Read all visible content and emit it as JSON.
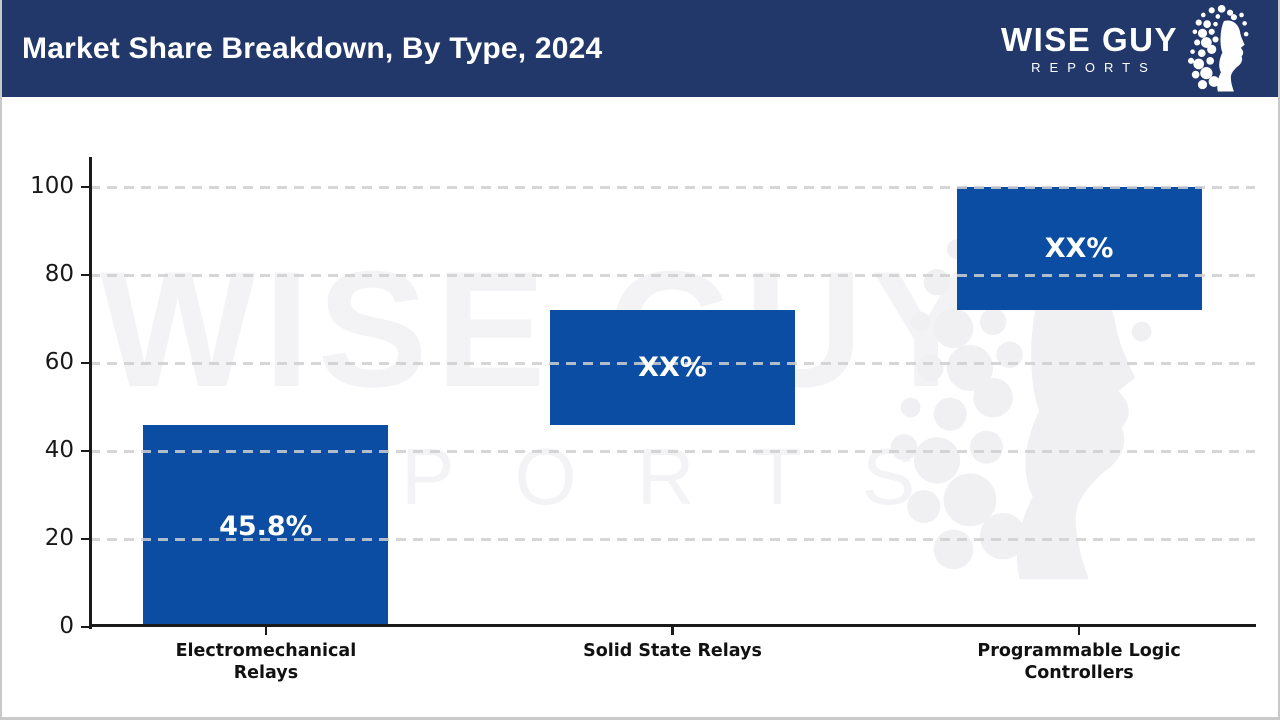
{
  "header": {
    "title": "Market Share Breakdown, By Type, 2024",
    "logo": {
      "name": "WISE GUY",
      "sub": "REPORTS"
    }
  },
  "watermark": {
    "name": "WISE GUY",
    "sub": "REPORTS"
  },
  "colors": {
    "header_bg": "#22386b",
    "bar": "#0b4da2",
    "bar_label": "#ffffff",
    "axis": "#1a1a1a",
    "gridline": "#cfcfcf",
    "tick_text": "#191919",
    "category_text": "#111111",
    "watermark_text": "#f3f3f5",
    "page_border": "#c9c9c9"
  },
  "chart_data": {
    "type": "bar",
    "variant": "waterfall",
    "title": "Market Share Breakdown, By Type, 2024",
    "categories": [
      "Electromechanical Relays",
      "Solid State Relays",
      "Programmable Logic Controllers"
    ],
    "categories_lines": [
      [
        "Electromechanical",
        "Relays"
      ],
      [
        "Solid State Relays"
      ],
      [
        "Programmable Logic",
        "Controllers"
      ]
    ],
    "bars": [
      {
        "category": "Electromechanical Relays",
        "start": 0,
        "end": 45.8,
        "label": "45.8%"
      },
      {
        "category": "Solid State Relays",
        "start": 45.8,
        "end": 72,
        "label": "XX%"
      },
      {
        "category": "Programmable Logic Controllers",
        "start": 72,
        "end": 100,
        "label": "XX%"
      }
    ],
    "xlabel": "",
    "ylabel": "",
    "ylim": [
      0,
      100
    ],
    "yticks": [
      0,
      20,
      40,
      60,
      80,
      100
    ],
    "grid": "horizontal-dashed",
    "legend": "none",
    "bar_color": "#0b4da2",
    "label_color": "#ffffff"
  }
}
